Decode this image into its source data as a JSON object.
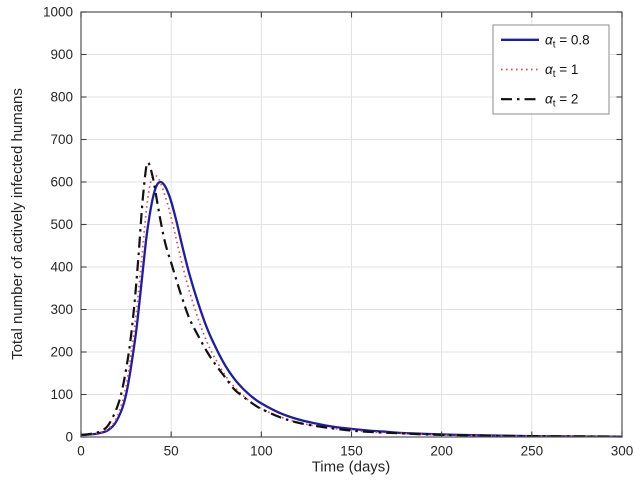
{
  "figure": {
    "background": "#ffffff",
    "frame_color": "#545454",
    "grid_color": "#e2e2e2",
    "tick_color": "#404040",
    "tick_label_color": "#262626",
    "legend_border_color": "#8c8c8c",
    "legend_background": "#ffffff"
  },
  "chart_data": {
    "type": "line",
    "title": "",
    "xlabel": "Time (days)",
    "ylabel": "Total number of actively infected humans",
    "xlim": [
      0,
      300
    ],
    "ylim": [
      0,
      1000
    ],
    "xticks": [
      0,
      50,
      100,
      150,
      200,
      250,
      300
    ],
    "yticks": [
      0,
      100,
      200,
      300,
      400,
      500,
      600,
      700,
      800,
      900,
      1000
    ],
    "grid": true,
    "legend_position": "top-right",
    "series": [
      {
        "label": {
          "symbol": "α",
          "sub": "t",
          "rest": " = 0.8"
        },
        "label_text": "alpha_t = 0.8",
        "color": "#1d1da6",
        "line_style": "solid",
        "x": [
          0,
          5,
          10,
          15,
          20,
          25,
          30,
          33,
          36,
          38,
          40,
          42,
          44,
          46,
          48,
          50,
          53,
          56,
          60,
          65,
          70,
          75,
          80,
          85,
          90,
          95,
          100,
          110,
          120,
          130,
          140,
          150,
          160,
          170,
          180,
          200,
          220,
          250,
          300
        ],
        "y": [
          5,
          6,
          9,
          16,
          40,
          100,
          230,
          340,
          460,
          520,
          565,
          592,
          600,
          594,
          578,
          554,
          506,
          452,
          385,
          315,
          255,
          208,
          168,
          137,
          113,
          94,
          79,
          57,
          42,
          32,
          24,
          19,
          15,
          12,
          9,
          6,
          4,
          2,
          1
        ]
      },
      {
        "label": {
          "symbol": "α",
          "sub": "t",
          "rest": " = 1"
        },
        "label_text": "alpha_t = 1",
        "color": "#e04f4f",
        "line_style": "dotted",
        "x": [
          0,
          5,
          10,
          15,
          20,
          25,
          30,
          33,
          35,
          37,
          39,
          41,
          43,
          45,
          48,
          50,
          53,
          56,
          60,
          65,
          70,
          75,
          80,
          85,
          90,
          95,
          100,
          110,
          120,
          130,
          140,
          150,
          160,
          170,
          180,
          200,
          220,
          250,
          300
        ],
        "y": [
          5,
          6,
          10,
          19,
          48,
          120,
          268,
          390,
          480,
          560,
          605,
          615,
          608,
          588,
          548,
          516,
          462,
          408,
          345,
          278,
          222,
          180,
          145,
          118,
          97,
          80,
          67,
          48,
          35,
          26,
          20,
          16,
          12,
          10,
          8,
          5,
          3,
          2,
          1
        ]
      },
      {
        "label": {
          "symbol": "α",
          "sub": "t",
          "rest": " = 2"
        },
        "label_text": "alpha_t = 2",
        "color": "#111111",
        "line_style": "dashdot",
        "x": [
          0,
          5,
          10,
          15,
          20,
          23,
          26,
          28,
          30,
          32,
          34,
          36,
          37,
          38,
          40,
          42,
          44,
          46,
          48,
          50,
          53,
          56,
          60,
          65,
          70,
          75,
          80,
          85,
          90,
          95,
          100,
          110,
          120,
          130,
          140,
          150,
          160,
          170,
          180,
          200,
          220,
          250,
          300
        ],
        "y": [
          5,
          7,
          12,
          27,
          70,
          115,
          185,
          248,
          330,
          432,
          548,
          630,
          645,
          640,
          608,
          560,
          512,
          468,
          436,
          410,
          368,
          328,
          280,
          238,
          200,
          168,
          140,
          112,
          95,
          79,
          66,
          47,
          34,
          26,
          20,
          15,
          12,
          10,
          8,
          5,
          3.5,
          2,
          1
        ]
      }
    ]
  }
}
